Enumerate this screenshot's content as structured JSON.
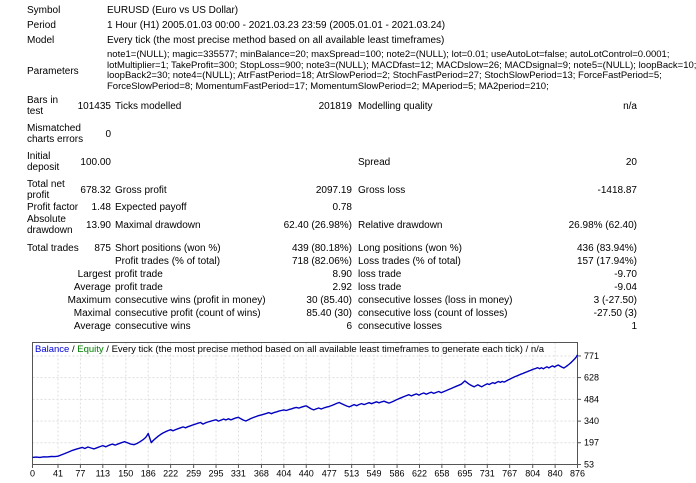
{
  "report": {
    "info_rows": [
      {
        "label": "Symbol",
        "value": "EURUSD (Euro vs US Dollar)"
      },
      {
        "label": "Period",
        "value": "1 Hour (H1) 2005.01.03 00:00 - 2021.03.23 23:59 (2005.01.01 - 2021.03.24)"
      },
      {
        "label": "Model",
        "value": "Every tick (the most precise method based on all available least timeframes)"
      },
      {
        "label": "Parameters",
        "lines": [
          "note1=(NULL); magic=335577; minBalance=20; maxSpread=100; note2=(NULL); lot=0.01; useAutoLot=false; autoLotControl=0.0001;",
          "lotMultiplier=1; TakeProfit=300; StopLoss=900; note3=(NULL); MACDfast=12; MACDslow=26; MACDsignal=9; note5=(NULL); loopBack=10;",
          "loopBack2=30; note4=(NULL); AtrFastPeriod=18; AtrSlowPeriod=2; StochFastPeriod=27; StochSlowPeriod=13; ForceFastPeriod=5;",
          "ForceSlowPeriod=8; MomentumFastPeriod=17; MomentumSlowPeriod=2; MAperiod=5; MA2period=210;"
        ]
      }
    ],
    "stat_rows": [
      {
        "l1": "Bars in test",
        "v1": "101435",
        "l3": "Ticks modelled",
        "v4": "201819",
        "l5": "Modelling quality",
        "v6": "n/a",
        "gap": false
      },
      {
        "l1": "Mismatched charts errors",
        "v1": "0",
        "l3": "",
        "v4": "",
        "l5": "",
        "v6": "",
        "gap": true
      },
      {
        "l1": "Initial deposit",
        "v1": "100.00",
        "l3": "",
        "v4": "",
        "l5": "Spread",
        "v6": "20",
        "gap": true
      },
      {
        "l1": "Total net profit",
        "v1": "678.32",
        "l3": "Gross profit",
        "v4": "2097.19",
        "l5": "Gross loss",
        "v6": "-1418.87",
        "gap": true
      },
      {
        "l1": "Profit factor",
        "v1": "1.48",
        "l3": "Expected payoff",
        "v4": "0.78",
        "l5": "",
        "v6": "",
        "gap": false
      },
      {
        "l1": "Absolute drawdown",
        "v1": "13.90",
        "l3": "Maximal drawdown",
        "v4": "62.40 (26.98%)",
        "l5": "Relative drawdown",
        "v6": "26.98% (62.40)",
        "gap": false
      },
      {
        "l1": "Total trades",
        "v1": "875",
        "l3": "Short positions (won %)",
        "v4": "439 (80.18%)",
        "l5": "Long positions (won %)",
        "v6": "436 (83.94%)",
        "gap": true
      },
      {
        "l1": "",
        "v1": "",
        "l3": "Profit trades (% of total)",
        "v4": "718 (82.06%)",
        "l5": "Loss trades (% of total)",
        "v6": "157 (17.94%)",
        "gap": false
      },
      {
        "l1": "",
        "v1": "Largest",
        "l3": "profit trade",
        "v4": "8.90",
        "l5": "loss trade",
        "v6": "-9.70",
        "gap": false
      },
      {
        "l1": "",
        "v1": "Average",
        "l3": "profit trade",
        "v4": "2.92",
        "l5": "loss trade",
        "v6": "-9.04",
        "gap": false
      },
      {
        "l1": "",
        "v1": "Maximum",
        "l3": "consecutive wins (profit in money)",
        "v4": "30 (85.40)",
        "l5": "consecutive losses (loss in money)",
        "v6": "3 (-27.50)",
        "gap": false
      },
      {
        "l1": "",
        "v1": "Maximal",
        "l3": "consecutive profit (count of wins)",
        "v4": "85.40 (30)",
        "l5": "consecutive loss (count of losses)",
        "v6": "-27.50 (3)",
        "gap": false
      },
      {
        "l1": "",
        "v1": "Average",
        "l3": "consecutive wins",
        "v4": "6",
        "l5": "consecutive losses",
        "v6": "1",
        "gap": false
      }
    ]
  },
  "chart_data": {
    "type": "line",
    "legend": {
      "balance_label": "Balance",
      "equity_label": "Equity",
      "separator": " / ",
      "rest": "Every tick (the most precise method based on all available least timeframes to generate each tick) / n/a",
      "balance_color": "#0000d8",
      "equity_color": "#008000"
    },
    "xlabel": "",
    "ylabel": "",
    "x_ticks": [
      0,
      41,
      77,
      113,
      150,
      186,
      222,
      259,
      295,
      331,
      368,
      404,
      440,
      477,
      513,
      549,
      586,
      622,
      658,
      695,
      731,
      767,
      804,
      840,
      876
    ],
    "y_ticks": [
      771,
      628,
      484,
      340,
      197,
      53
    ],
    "y_gridlines": [
      197,
      340,
      484,
      628,
      771
    ],
    "xlim": [
      0,
      876
    ],
    "ylim": [
      53,
      860
    ],
    "grid": "dashed",
    "line_color": "#0000c0",
    "grid_color": "#dedede",
    "border_color": "#555555",
    "series": [
      {
        "name": "Balance",
        "points": [
          [
            0,
            100
          ],
          [
            6,
            102
          ],
          [
            12,
            100
          ],
          [
            18,
            104
          ],
          [
            24,
            103
          ],
          [
            30,
            106
          ],
          [
            36,
            105
          ],
          [
            41,
            108
          ],
          [
            46,
            116
          ],
          [
            52,
            126
          ],
          [
            58,
            136
          ],
          [
            64,
            146
          ],
          [
            70,
            154
          ],
          [
            75,
            160
          ],
          [
            80,
            166
          ],
          [
            84,
            159
          ],
          [
            89,
            169
          ],
          [
            94,
            162
          ],
          [
            99,
            156
          ],
          [
            104,
            164
          ],
          [
            109,
            172
          ],
          [
            113,
            178
          ],
          [
            118,
            170
          ],
          [
            123,
            180
          ],
          [
            128,
            188
          ],
          [
            133,
            181
          ],
          [
            138,
            190
          ],
          [
            143,
            197
          ],
          [
            148,
            204
          ],
          [
            153,
            196
          ],
          [
            158,
            188
          ],
          [
            163,
            184
          ],
          [
            168,
            192
          ],
          [
            173,
            204
          ],
          [
            178,
            218
          ],
          [
            182,
            232
          ],
          [
            184,
            245
          ],
          [
            186,
            258
          ],
          [
            188,
            232
          ],
          [
            191,
            198
          ],
          [
            194,
            212
          ],
          [
            198,
            226
          ],
          [
            202,
            240
          ],
          [
            206,
            252
          ],
          [
            210,
            262
          ],
          [
            214,
            270
          ],
          [
            218,
            277
          ],
          [
            222,
            283
          ],
          [
            226,
            276
          ],
          [
            230,
            284
          ],
          [
            234,
            290
          ],
          [
            238,
            296
          ],
          [
            242,
            302
          ],
          [
            246,
            296
          ],
          [
            250,
            303
          ],
          [
            254,
            309
          ],
          [
            258,
            315
          ],
          [
            262,
            320
          ],
          [
            266,
            326
          ],
          [
            270,
            331
          ],
          [
            274,
            320
          ],
          [
            278,
            328
          ],
          [
            282,
            334
          ],
          [
            286,
            339
          ],
          [
            290,
            344
          ],
          [
            295,
            349
          ],
          [
            299,
            340
          ],
          [
            303,
            347
          ],
          [
            307,
            353
          ],
          [
            311,
            348
          ],
          [
            315,
            355
          ],
          [
            319,
            348
          ],
          [
            323,
            355
          ],
          [
            327,
            361
          ],
          [
            331,
            365
          ],
          [
            335,
            355
          ],
          [
            339,
            347
          ],
          [
            343,
            341
          ],
          [
            347,
            349
          ],
          [
            351,
            357
          ],
          [
            355,
            364
          ],
          [
            359,
            370
          ],
          [
            363,
            376
          ],
          [
            368,
            381
          ],
          [
            372,
            386
          ],
          [
            376,
            391
          ],
          [
            380,
            396
          ],
          [
            384,
            389
          ],
          [
            388,
            396
          ],
          [
            392,
            401
          ],
          [
            396,
            406
          ],
          [
            400,
            410
          ],
          [
            404,
            414
          ],
          [
            408,
            410
          ],
          [
            412,
            416
          ],
          [
            416,
            421
          ],
          [
            420,
            426
          ],
          [
            424,
            431
          ],
          [
            428,
            426
          ],
          [
            432,
            432
          ],
          [
            436,
            437
          ],
          [
            440,
            441
          ],
          [
            444,
            431
          ],
          [
            448,
            421
          ],
          [
            452,
            414
          ],
          [
            456,
            421
          ],
          [
            460,
            427
          ],
          [
            464,
            420
          ],
          [
            468,
            427
          ],
          [
            472,
            432
          ],
          [
            477,
            437
          ],
          [
            481,
            443
          ],
          [
            485,
            450
          ],
          [
            489,
            457
          ],
          [
            493,
            463
          ],
          [
            497,
            455
          ],
          [
            501,
            447
          ],
          [
            505,
            440
          ],
          [
            509,
            434
          ],
          [
            513,
            442
          ],
          [
            517,
            449
          ],
          [
            521,
            442
          ],
          [
            525,
            450
          ],
          [
            529,
            456
          ],
          [
            533,
            449
          ],
          [
            537,
            456
          ],
          [
            541,
            462
          ],
          [
            545,
            455
          ],
          [
            549,
            462
          ],
          [
            553,
            468
          ],
          [
            557,
            461
          ],
          [
            561,
            467
          ],
          [
            565,
            472
          ],
          [
            569,
            465
          ],
          [
            573,
            459
          ],
          [
            577,
            466
          ],
          [
            581,
            473
          ],
          [
            585,
            481
          ],
          [
            589,
            488
          ],
          [
            593,
            495
          ],
          [
            597,
            502
          ],
          [
            601,
            509
          ],
          [
            605,
            515
          ],
          [
            609,
            507
          ],
          [
            613,
            514
          ],
          [
            617,
            520
          ],
          [
            621,
            512
          ],
          [
            625,
            520
          ],
          [
            629,
            526
          ],
          [
            633,
            518
          ],
          [
            637,
            525
          ],
          [
            641,
            531
          ],
          [
            645,
            523
          ],
          [
            649,
            530
          ],
          [
            653,
            536
          ],
          [
            657,
            528
          ],
          [
            661,
            535
          ],
          [
            665,
            542
          ],
          [
            669,
            549
          ],
          [
            673,
            556
          ],
          [
            677,
            563
          ],
          [
            681,
            570
          ],
          [
            685,
            577
          ],
          [
            689,
            584
          ],
          [
            691,
            591
          ],
          [
            693,
            599
          ],
          [
            695,
            606
          ],
          [
            698,
            596
          ],
          [
            701,
            587
          ],
          [
            704,
            579
          ],
          [
            707,
            572
          ],
          [
            710,
            567
          ],
          [
            713,
            574
          ],
          [
            716,
            580
          ],
          [
            719,
            573
          ],
          [
            722,
            567
          ],
          [
            725,
            574
          ],
          [
            728,
            581
          ],
          [
            731,
            587
          ],
          [
            734,
            582
          ],
          [
            737,
            589
          ],
          [
            740,
            595
          ],
          [
            743,
            589
          ],
          [
            746,
            596
          ],
          [
            749,
            602
          ],
          [
            752,
            596
          ],
          [
            755,
            603
          ],
          [
            758,
            598
          ],
          [
            761,
            605
          ],
          [
            764,
            611
          ],
          [
            767,
            617
          ],
          [
            770,
            623
          ],
          [
            773,
            629
          ],
          [
            776,
            635
          ],
          [
            779,
            640
          ],
          [
            782,
            645
          ],
          [
            785,
            650
          ],
          [
            788,
            655
          ],
          [
            791,
            660
          ],
          [
            794,
            665
          ],
          [
            797,
            670
          ],
          [
            800,
            675
          ],
          [
            803,
            680
          ],
          [
            806,
            685
          ],
          [
            809,
            689
          ],
          [
            812,
            693
          ],
          [
            815,
            687
          ],
          [
            818,
            693
          ],
          [
            821,
            686
          ],
          [
            824,
            693
          ],
          [
            827,
            699
          ],
          [
            830,
            692
          ],
          [
            833,
            699
          ],
          [
            836,
            705
          ],
          [
            839,
            698
          ],
          [
            842,
            705
          ],
          [
            845,
            711
          ],
          [
            848,
            704
          ],
          [
            851,
            697
          ],
          [
            854,
            691
          ],
          [
            857,
            699
          ],
          [
            860,
            708
          ],
          [
            863,
            718
          ],
          [
            866,
            729
          ],
          [
            869,
            741
          ],
          [
            872,
            754
          ],
          [
            874,
            765
          ],
          [
            876,
            778
          ]
        ]
      }
    ]
  }
}
